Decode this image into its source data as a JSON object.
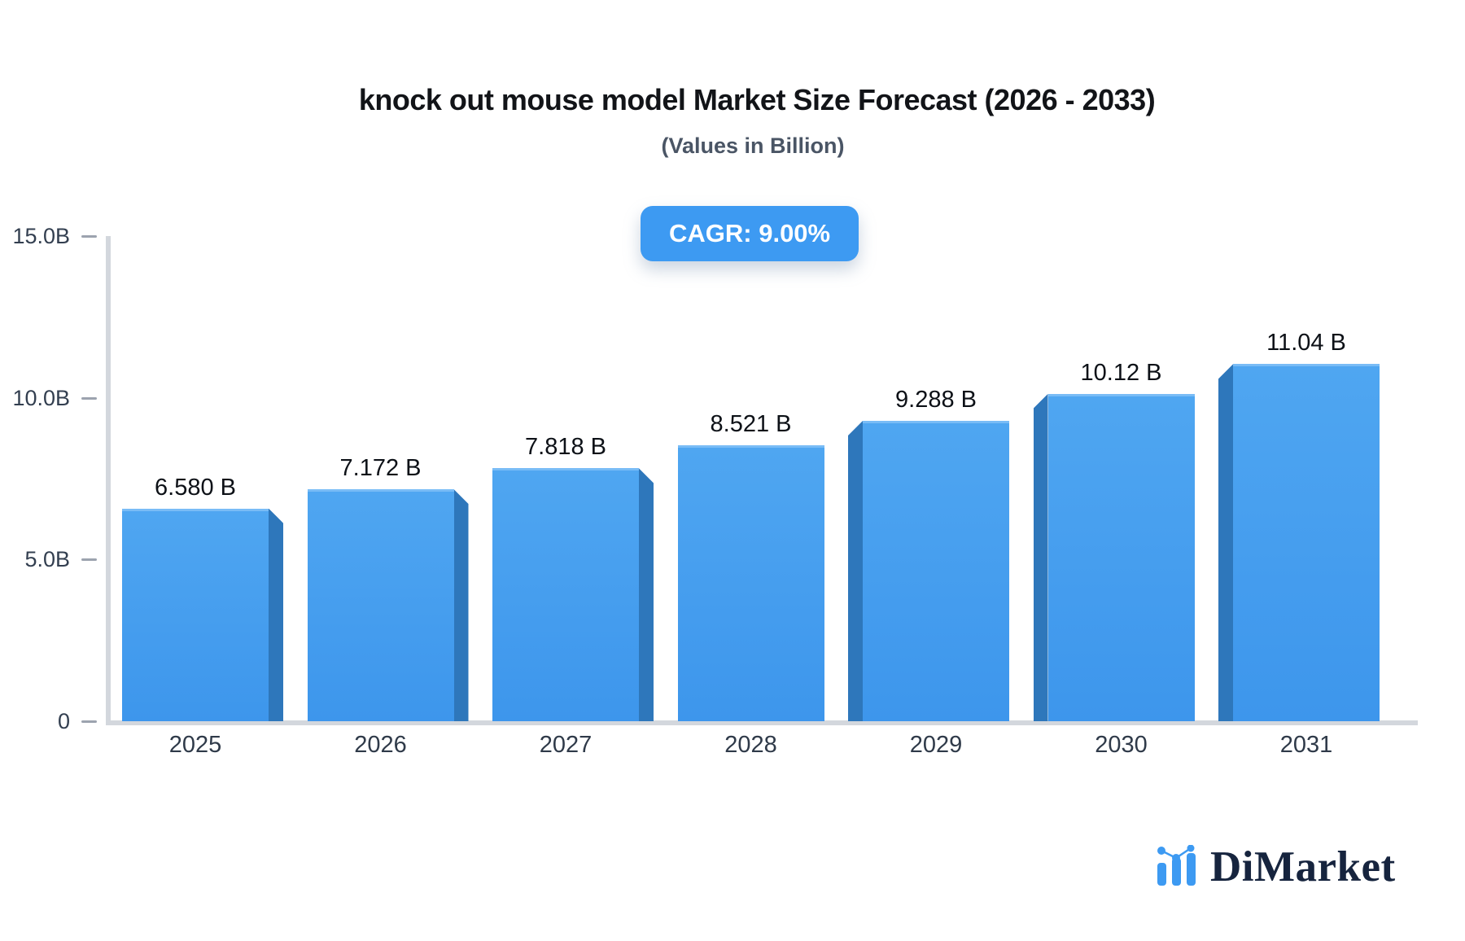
{
  "chart_data": {
    "type": "bar",
    "title": "knock out mouse model Market Size Forecast (2026 - 2033)",
    "subtitle": "(Values in Billion)",
    "badge": "CAGR: 9.00%",
    "categories": [
      "2025",
      "2026",
      "2027",
      "2028",
      "2029",
      "2030",
      "2031"
    ],
    "values": [
      6.58,
      7.172,
      7.818,
      8.521,
      9.288,
      10.12,
      11.04
    ],
    "value_labels": [
      "6.580 B",
      "7.172 B",
      "7.818 B",
      "8.521 B",
      "9.288 B",
      "10.12 B",
      "11.04 B"
    ],
    "xlabel": "",
    "ylabel": "",
    "ylim": [
      0,
      15
    ],
    "yticks": [
      {
        "label": "15.0B",
        "value": 15
      },
      {
        "label": "10.0B",
        "value": 10
      },
      {
        "label": "5.0B",
        "value": 5
      },
      {
        "label": "0",
        "value": 0
      }
    ],
    "grid": false,
    "legend": false,
    "bar_style": "3d-extruded-toward-center"
  },
  "colors": {
    "background": "#FFFFFF",
    "bar_highlight": "#79BCF6",
    "bar_top": "#4FA6F1",
    "bar_bottom": "#3D96EC",
    "bar_side": "#2E77BB",
    "badge_bg": "#3D9AF2",
    "badge_text": "#FFFFFF",
    "axis_line": "#D3D7DD",
    "tick_dash": "#9CA3AF",
    "tick_label": "#333F50",
    "x_label": "#2F3A49",
    "value_label": "#0D1117",
    "title": "#121418",
    "subtitle": "#4A5565",
    "logo_text": "#16243E",
    "logo_icon": "#3D9AF2"
  },
  "branding": {
    "logo_text": "DiMarket",
    "logo_icon": "mini-bar-chart-icon"
  }
}
